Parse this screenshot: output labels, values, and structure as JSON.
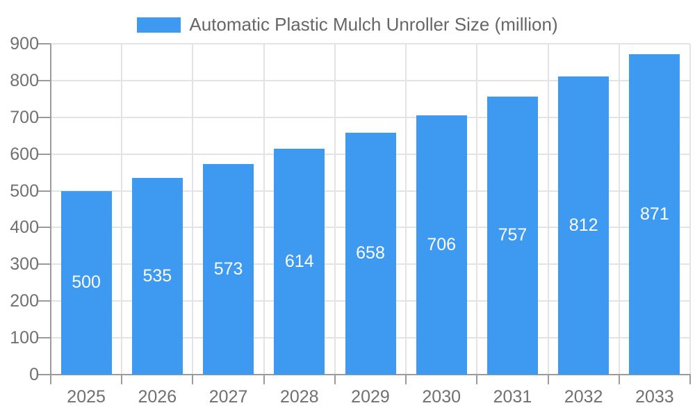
{
  "chart_data": {
    "type": "bar",
    "legend": "Automatic Plastic Mulch Unroller Size (million)",
    "categories": [
      "2025",
      "2026",
      "2027",
      "2028",
      "2029",
      "2030",
      "2031",
      "2032",
      "2033"
    ],
    "values": [
      500,
      535,
      573,
      614,
      658,
      706,
      757,
      812,
      871
    ],
    "value_labels": [
      "500",
      "535",
      "573",
      "614",
      "658",
      "706",
      "757",
      "812",
      "871"
    ],
    "yticks": [
      "0",
      "100",
      "200",
      "300",
      "400",
      "500",
      "600",
      "700",
      "800",
      "900"
    ],
    "ylim": [
      0,
      900
    ],
    "xlabel": "",
    "ylabel": "",
    "title": "",
    "grid": true,
    "legend_position": "top-center",
    "colors": {
      "bar": "#3D9AF0",
      "bar_value_text": "#FFFFFF",
      "axis_text": "#707070",
      "legend_text": "#666666",
      "axis_line": "#9B9B9B",
      "gridline": "#E3E3E3",
      "background": "#FFFFFF"
    }
  }
}
